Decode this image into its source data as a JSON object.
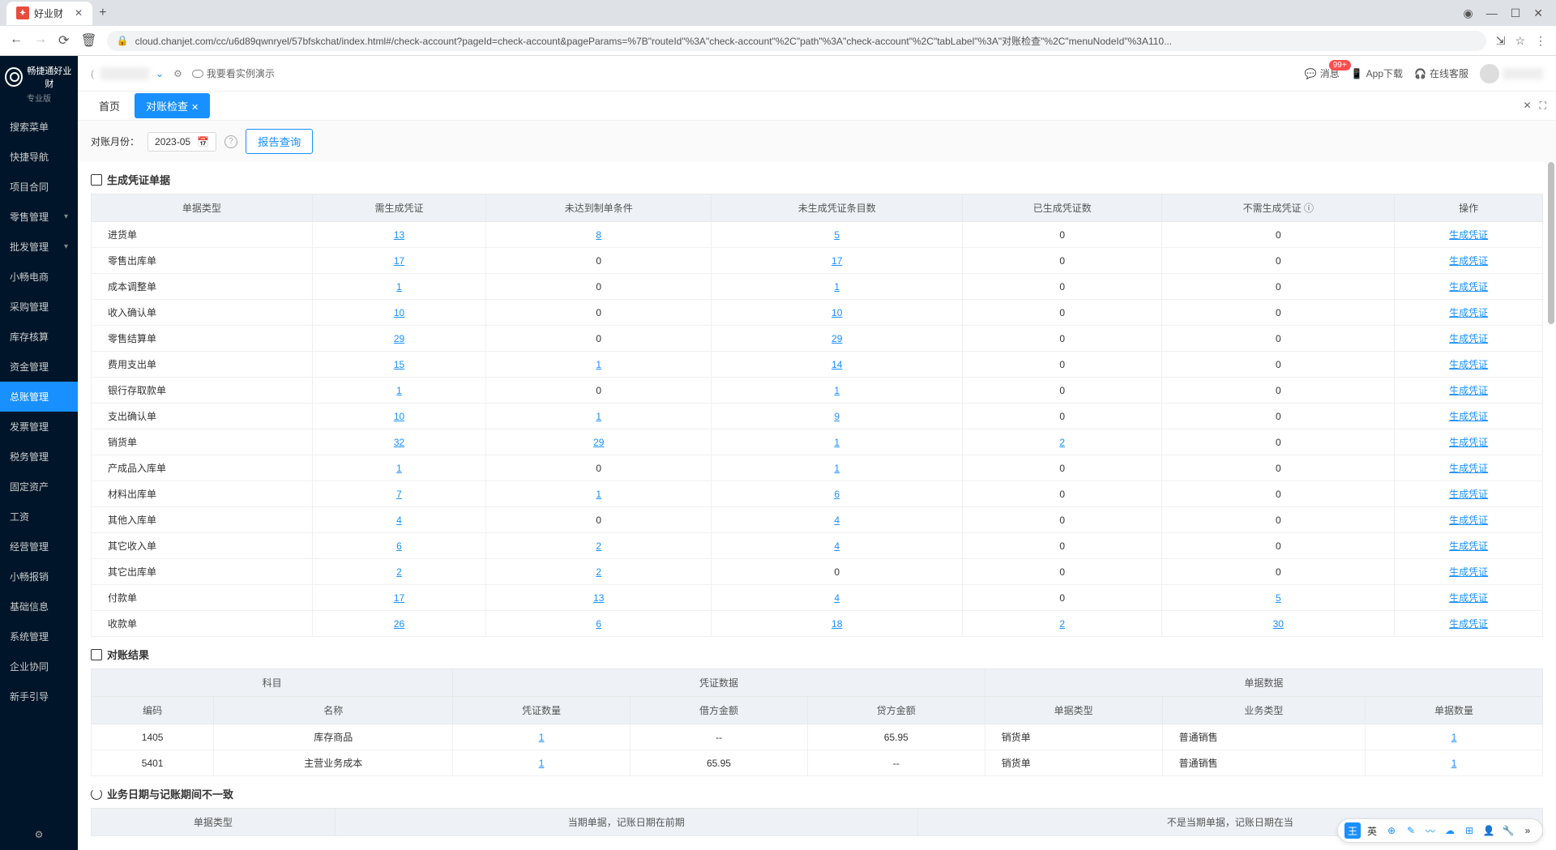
{
  "browser": {
    "tabTitle": "好业财",
    "url": "cloud.chanjet.com/cc/u6d89qwnryel/57bfskchat/index.html#/check-account?pageId=check-account&pageParams=%7B\"routeId\"%3A\"check-account\"%2C\"path\"%3A\"check-account\"%2C\"tabLabel\"%3A\"对账检查\"%2C\"menuNodeId\"%3A110..."
  },
  "logo": {
    "name": "畅捷通好业财",
    "edition": "专业版"
  },
  "sidebar": [
    {
      "label": "搜索菜单",
      "caret": false
    },
    {
      "label": "快捷导航",
      "caret": false
    },
    {
      "label": "项目合同",
      "caret": false
    },
    {
      "label": "零售管理",
      "caret": true
    },
    {
      "label": "批发管理",
      "caret": true
    },
    {
      "label": "小畅电商",
      "caret": false
    },
    {
      "label": "采购管理",
      "caret": false
    },
    {
      "label": "库存核算",
      "caret": false
    },
    {
      "label": "资金管理",
      "caret": false
    },
    {
      "label": "总账管理",
      "caret": false,
      "active": true
    },
    {
      "label": "发票管理",
      "caret": false
    },
    {
      "label": "税务管理",
      "caret": false
    },
    {
      "label": "固定资产",
      "caret": false
    },
    {
      "label": "工资",
      "caret": false
    },
    {
      "label": "经营管理",
      "caret": false
    },
    {
      "label": "小畅报销",
      "caret": false
    },
    {
      "label": "基础信息",
      "caret": false
    },
    {
      "label": "系统管理",
      "caret": false
    },
    {
      "label": "企业协同",
      "caret": false
    },
    {
      "label": "新手引导",
      "caret": false
    }
  ],
  "topbar": {
    "demo": "我要看实例演示",
    "msg": "消息",
    "msgBadge": "99+",
    "app": "App下载",
    "service": "在线客服"
  },
  "tabs": {
    "home": "首页",
    "active": "对账检查"
  },
  "filter": {
    "label": "对账月份：",
    "date": "2023-05",
    "query": "报告查询"
  },
  "section1": {
    "title": "生成凭证单据",
    "headers": [
      "单据类型",
      "需生成凭证",
      "未达到制单条件",
      "未生成凭证条目数",
      "已生成凭证数",
      "不需生成凭证 ⓘ",
      "操作"
    ],
    "action": "生成凭证",
    "rows": [
      {
        "type": "进货单",
        "need": "13",
        "notReady": "8",
        "notGen": "5",
        "gen": "0",
        "noNeed": "0"
      },
      {
        "type": "零售出库单",
        "need": "17",
        "notReady": "0",
        "notGen": "17",
        "gen": "0",
        "noNeed": "0"
      },
      {
        "type": "成本调整单",
        "need": "1",
        "notReady": "0",
        "notGen": "1",
        "gen": "0",
        "noNeed": "0"
      },
      {
        "type": "收入确认单",
        "need": "10",
        "notReady": "0",
        "notGen": "10",
        "gen": "0",
        "noNeed": "0"
      },
      {
        "type": "零售结算单",
        "need": "29",
        "notReady": "0",
        "notGen": "29",
        "gen": "0",
        "noNeed": "0"
      },
      {
        "type": "费用支出单",
        "need": "15",
        "notReady": "1",
        "notGen": "14",
        "gen": "0",
        "noNeed": "0"
      },
      {
        "type": "银行存取款单",
        "need": "1",
        "notReady": "0",
        "notGen": "1",
        "gen": "0",
        "noNeed": "0"
      },
      {
        "type": "支出确认单",
        "need": "10",
        "notReady": "1",
        "notGen": "9",
        "gen": "0",
        "noNeed": "0"
      },
      {
        "type": "销货单",
        "need": "32",
        "notReady": "29",
        "notGen": "1",
        "gen": "2",
        "noNeed": "0"
      },
      {
        "type": "产成品入库单",
        "need": "1",
        "notReady": "0",
        "notGen": "1",
        "gen": "0",
        "noNeed": "0"
      },
      {
        "type": "材料出库单",
        "need": "7",
        "notReady": "1",
        "notGen": "6",
        "gen": "0",
        "noNeed": "0"
      },
      {
        "type": "其他入库单",
        "need": "4",
        "notReady": "0",
        "notGen": "4",
        "gen": "0",
        "noNeed": "0"
      },
      {
        "type": "其它收入单",
        "need": "6",
        "notReady": "2",
        "notGen": "4",
        "gen": "0",
        "noNeed": "0"
      },
      {
        "type": "其它出库单",
        "need": "2",
        "notReady": "2",
        "notGen": "0",
        "gen": "0",
        "noNeed": "0"
      },
      {
        "type": "付款单",
        "need": "17",
        "notReady": "13",
        "notGen": "4",
        "gen": "0",
        "noNeed": "5"
      },
      {
        "type": "收款单",
        "need": "26",
        "notReady": "6",
        "notGen": "18",
        "gen": "2",
        "noNeed": "30"
      }
    ]
  },
  "section2": {
    "title": "对账结果",
    "h1": [
      "科目",
      "凭证数据",
      "",
      "单据数据"
    ],
    "h2": [
      "编码",
      "名称",
      "凭证数量",
      "借方金额",
      "贷方金额",
      "单据类型",
      "业务类型",
      "单据数量"
    ],
    "rows": [
      {
        "code": "1405",
        "name": "库存商品",
        "vcount": "1",
        "debit": "--",
        "credit": "65.95",
        "docType": "销货单",
        "bizType": "普通销售",
        "docCount": "1"
      },
      {
        "code": "5401",
        "name": "主营业务成本",
        "vcount": "1",
        "debit": "65.95",
        "credit": "--",
        "docType": "销货单",
        "bizType": "普通销售",
        "docCount": "1"
      }
    ]
  },
  "section3": {
    "title": "业务日期与记账期间不一致",
    "headers": [
      "单据类型",
      "当期单据，记账日期在前期",
      "不是当期单据，记账日期在当"
    ]
  },
  "colors": {
    "primary": "#1890ff",
    "sidebarBg": "#001529",
    "link": "#1890ff",
    "thBg": "#eef2f7",
    "badge": "#ff4d4f"
  }
}
